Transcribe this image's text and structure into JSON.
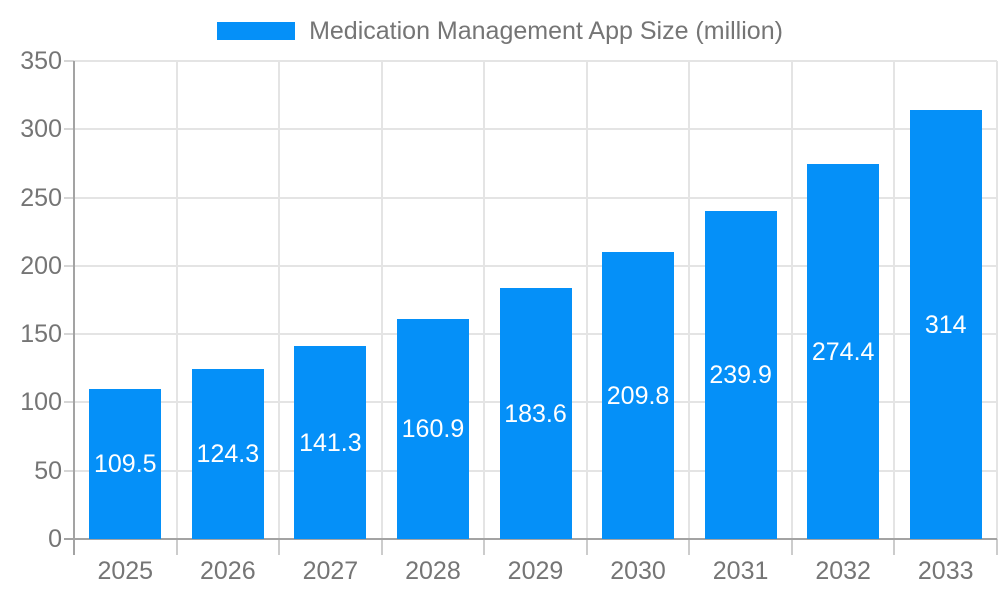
{
  "chart_data": {
    "type": "bar",
    "title": "Medication Management App Size (million)",
    "categories": [
      "2025",
      "2026",
      "2027",
      "2028",
      "2029",
      "2030",
      "2031",
      "2032",
      "2033"
    ],
    "values": [
      109.5,
      124.3,
      141.3,
      160.9,
      183.6,
      209.8,
      239.9,
      274.4,
      314
    ],
    "value_labels": [
      "109.5",
      "124.3",
      "141.3",
      "160.9",
      "183.6",
      "209.8",
      "239.9",
      "274.4",
      "314"
    ],
    "yticks": [
      0,
      50,
      100,
      150,
      200,
      250,
      300,
      350
    ],
    "ylim": [
      0,
      350
    ],
    "xlabel": "",
    "ylabel": "",
    "grid": true,
    "legend_position": "top",
    "value_label_position": "inside-center",
    "colors": {
      "bar": "#0590f8",
      "value_label": "#ffffff",
      "axis_text": "#757575",
      "title_text": "#757575",
      "gridline": "#e4e4e4",
      "axis_line": "#a3a3a3",
      "tick": "#cccccc",
      "background": "#ffffff"
    }
  }
}
